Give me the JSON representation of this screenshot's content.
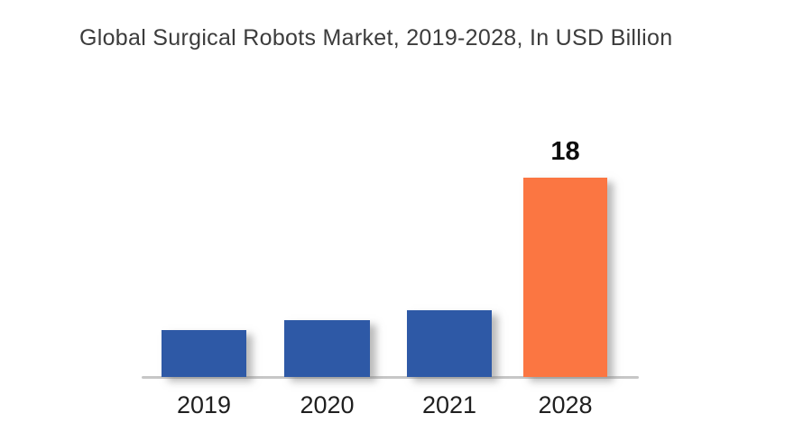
{
  "title": "Global Surgical Robots Market, 2019-2028, In USD Billion",
  "chart_data": {
    "type": "bar",
    "title": "Global Surgical Robots Market, 2019-2028, In USD Billion",
    "categories": [
      "2019",
      "2020",
      "2021",
      "2028"
    ],
    "values": [
      4.2,
      5.1,
      6.0,
      18
    ],
    "data_labels": [
      "",
      "",
      "",
      "18"
    ],
    "unit": "USD Billion",
    "xlabel": "",
    "ylabel": "",
    "ylim": [
      0,
      20
    ],
    "grid": false,
    "legend": false,
    "bar_colors": [
      "#2E59A6",
      "#2E59A6",
      "#2E59A6",
      "#FB7642"
    ],
    "colors": {
      "default_bar": "#2E59A6",
      "highlight_bar": "#FB7642",
      "axis_line": "#C7C7C7",
      "title_text": "#3C3C3C",
      "label_text": "#1F1F1F"
    }
  }
}
